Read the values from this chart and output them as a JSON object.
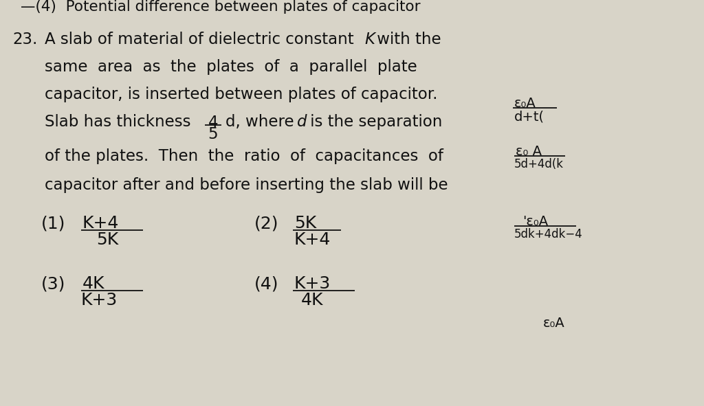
{
  "background_color": "#d8d4c8",
  "text_color": "#111111",
  "header_text": "—(4)  Potential difference between plates of capacitor",
  "q_num": "23.",
  "line1": "A slab of material of dielectric constant ",
  "line1_K": "K",
  "line1_end": " with the",
  "line2": "same  area  as  the  plates  of  a  parallel  plate",
  "line3": "capacitor, is inserted between plates of capacitor.",
  "line4a": "Slab has thickness",
  "line4b": "d, where",
  "line4c": "d",
  "line4d": "is the separation",
  "line5": "of the plates.  Then  the  ratio  of  capacitances  of",
  "line6": "capacitor after and before inserting the slab will be",
  "frac_num": "4",
  "frac_den": "5",
  "side1_num": "ε₀A",
  "side1_den": "d+t(",
  "side2_num": "ε₀ A",
  "side2_den": "5d+4d(k",
  "side3_num": "ε₀A",
  "side3_den": "5dk+4dk−4",
  "side4": "ε₀A",
  "opt1_num": "K+4",
  "opt1_den": "5K",
  "opt2_num": "5K",
  "opt2_den": "K+4",
  "opt3_num": "4K",
  "opt3_den": "K+3",
  "opt4_num": "K+3",
  "opt4_den": "4K",
  "fs_main": 16.5,
  "fs_header": 15.5,
  "fs_opt": 18,
  "fs_side": 13,
  "fs_side_large": 14
}
